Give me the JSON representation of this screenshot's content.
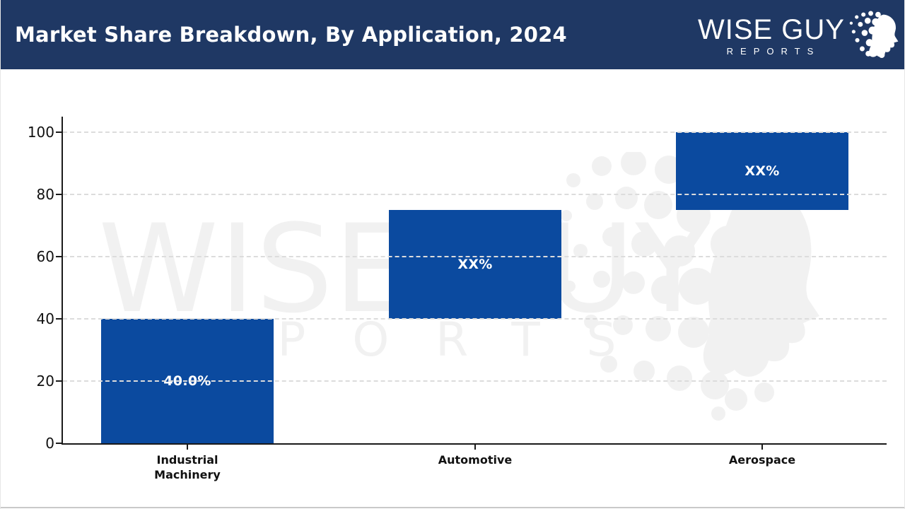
{
  "header": {
    "title": "Market Share Breakdown, By Application, 2024",
    "logo": {
      "line1": "WISE GUY",
      "line2": "REPORTS"
    }
  },
  "watermark": {
    "line1": "WISE GUY",
    "line2": "REPORTS"
  },
  "colors": {
    "header_bg": "#1f3864",
    "bar": "#0b4a9f",
    "gridline": "#dcdcdc",
    "axis": "#1a1a1a",
    "watermark": "#f1f1f1"
  },
  "chart_data": {
    "type": "bar",
    "subtype": "waterfall-segments",
    "title": "Market Share Breakdown, By Application, 2024",
    "categories": [
      "Industrial Machinery",
      "Automotive",
      "Aerospace"
    ],
    "category_label_lines": [
      [
        "Industrial",
        "Machinery"
      ],
      [
        "Automotive"
      ],
      [
        "Aerospace"
      ]
    ],
    "bars": [
      {
        "category": "Industrial Machinery",
        "start": 0,
        "end": 40,
        "value": 40,
        "label": "40.0%"
      },
      {
        "category": "Automotive",
        "start": 40,
        "end": 75,
        "value": 35,
        "label": "XX%"
      },
      {
        "category": "Aerospace",
        "start": 75,
        "end": 100,
        "value": 25,
        "label": "XX%"
      }
    ],
    "xlabel": "",
    "ylabel": "",
    "yticks": [
      0,
      20,
      40,
      60,
      80,
      100
    ],
    "ylim": [
      0,
      105
    ],
    "grid": true,
    "grid_style": "dashed",
    "legend_position": "none"
  }
}
